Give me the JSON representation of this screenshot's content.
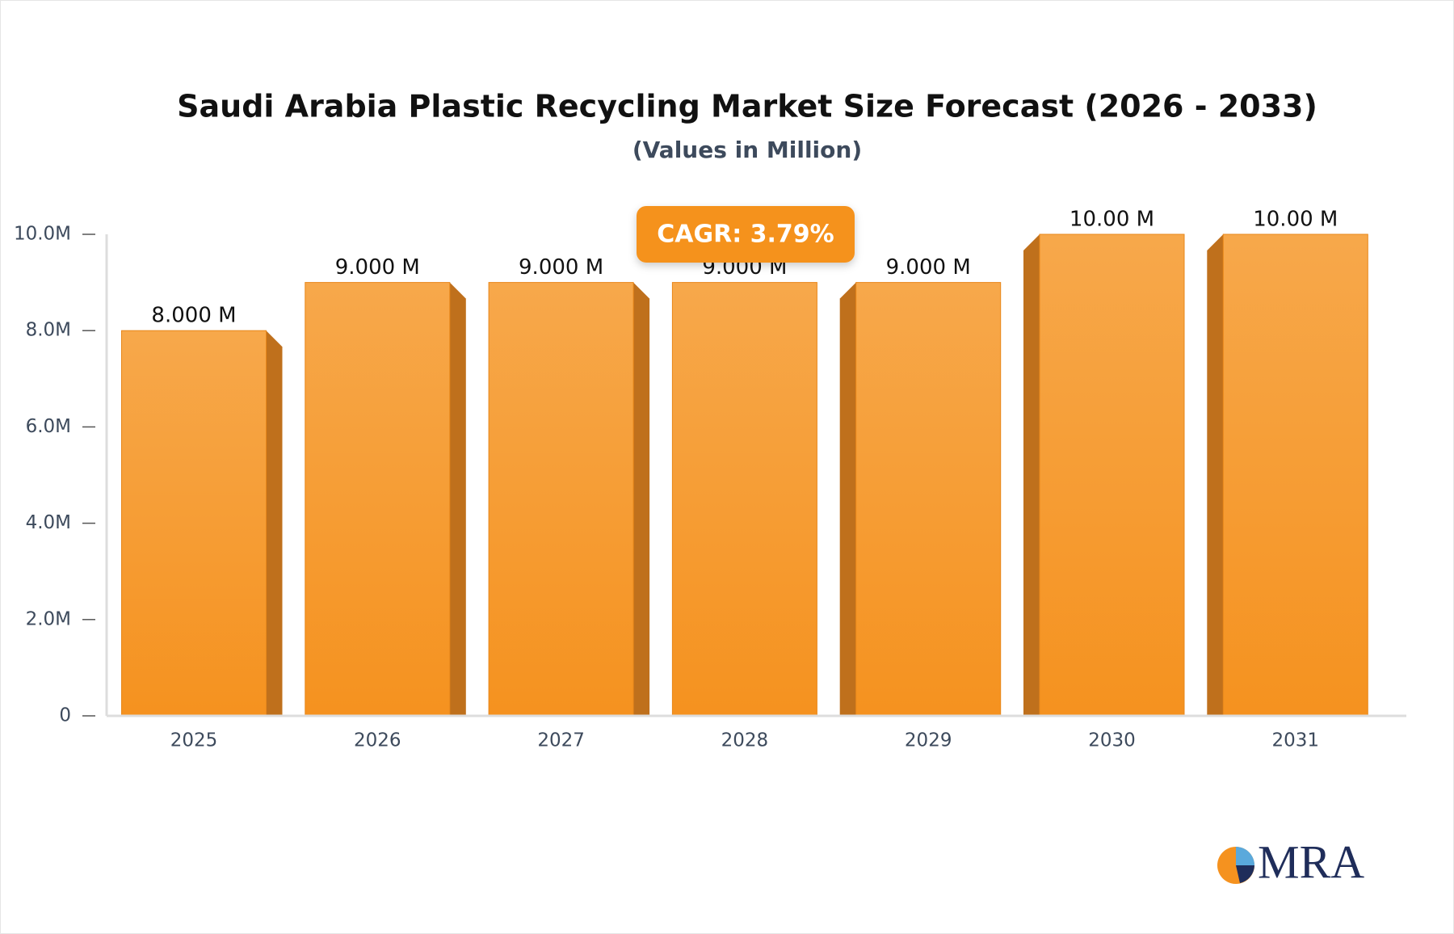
{
  "chart_data": {
    "type": "bar",
    "title": "Saudi Arabia Plastic Recycling Market Size Forecast (2026 - 2033)",
    "subtitle": "(Values in Million)",
    "categories": [
      "2025",
      "2026",
      "2027",
      "2028",
      "2029",
      "2030",
      "2031"
    ],
    "values": [
      8,
      9,
      9,
      9,
      9,
      10,
      10
    ],
    "value_labels": [
      "8.000 M",
      "9.000 M",
      "9.000 M",
      "9.000 M",
      "9.000 M",
      "10.00 M",
      "10.00 M"
    ],
    "color": "#f5941f",
    "ylim": [
      0,
      10
    ],
    "yticks": [
      0,
      {
        "value": 2,
        "label": "2.0M"
      },
      {
        "value": 4,
        "label": "4.0M"
      },
      {
        "value": 6,
        "label": "6.0M"
      },
      {
        "value": 8,
        "label": "8.0M"
      },
      {
        "value": 10,
        "label": "10.0M"
      }
    ],
    "annotation": "CAGR: 3.79%"
  },
  "logo": "MRA"
}
